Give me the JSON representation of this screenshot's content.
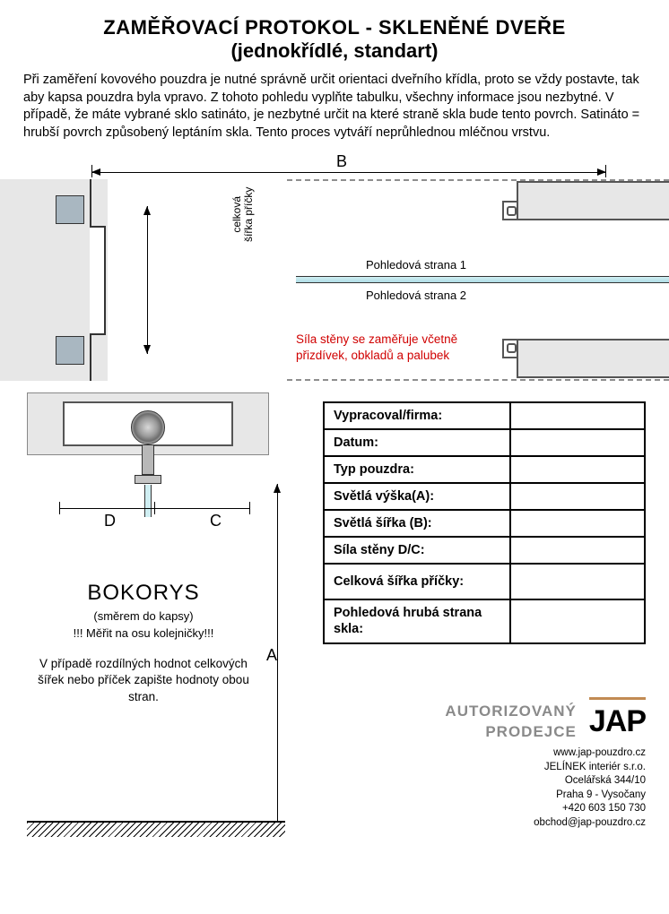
{
  "title": {
    "line1": "ZAMĚŘOVACÍ PROTOKOL - SKLENĚNÉ DVEŘE",
    "line2": "(jednokřídlé, standart)"
  },
  "intro": "Při zaměření kovového pouzdra je nutné správně určit orientaci dveřního křídla, proto se vždy postavte, tak aby kapsa pouzdra byla vpravo. Z tohoto pohledu vyplňte tabulku, všechny informace jsou nezbytné. V případě, že máte vybrané sklo satináto, je nezbytné určit na které straně skla bude tento povrch. Satináto = hrubší povrch způsobený leptáním skla. Tento proces vytváří neprůhlednou mléčnou vrstvu.",
  "labels": {
    "B": "B",
    "vertical_dim_1": "celková",
    "vertical_dim_2": "šířka příčky",
    "glass_side_1": "Pohledová strana 1",
    "glass_side_2": "Pohledová strana 2",
    "red_note_1": "Síla stěny se zaměřuje včetně",
    "red_note_2": "přizdívek, obkladů a palubek",
    "D": "D",
    "C": "C",
    "A": "A"
  },
  "bokorys": {
    "title": "BOKORYS",
    "sub": "(směrem do kapsy)",
    "note1": "!!! Měřit na osu kolejničky!!!",
    "note2": "V případě rozdílných hodnot celkových šířek nebo příček zapište hodnoty obou stran."
  },
  "form": {
    "rows": [
      {
        "label": "Vypracoval/firma:",
        "value": ""
      },
      {
        "label": "Datum:",
        "value": ""
      },
      {
        "label": "Typ pouzdra:",
        "value": ""
      },
      {
        "label": "Světlá výška(A):",
        "value": ""
      },
      {
        "label": "Světlá šířka (B):",
        "value": ""
      },
      {
        "label": "Síla stěny D/C:",
        "value": ""
      },
      {
        "label": "Celková šířka příčky:",
        "value": ""
      },
      {
        "label": "Pohledová hrubá strana skla:",
        "value": ""
      }
    ]
  },
  "dealer": {
    "auth1": "AUTORIZOVANÝ",
    "auth2": "PRODEJCE",
    "logo": "JAP",
    "web": "www.jap-pouzdro.cz",
    "company": "JELÍNEK interiér s.r.o.",
    "street": "Ocelářská 344/10",
    "city": "Praha 9 - Vysočany",
    "phone": "+420 603 150 730",
    "email": "obchod@jap-pouzdro.cz"
  },
  "colors": {
    "background": "#ffffff",
    "profile_fill": "#e7e7e7",
    "glass": "#cfeef2",
    "red": "#d00000",
    "dealer_grey": "#8a8a8a",
    "copper": "#c28b53"
  }
}
